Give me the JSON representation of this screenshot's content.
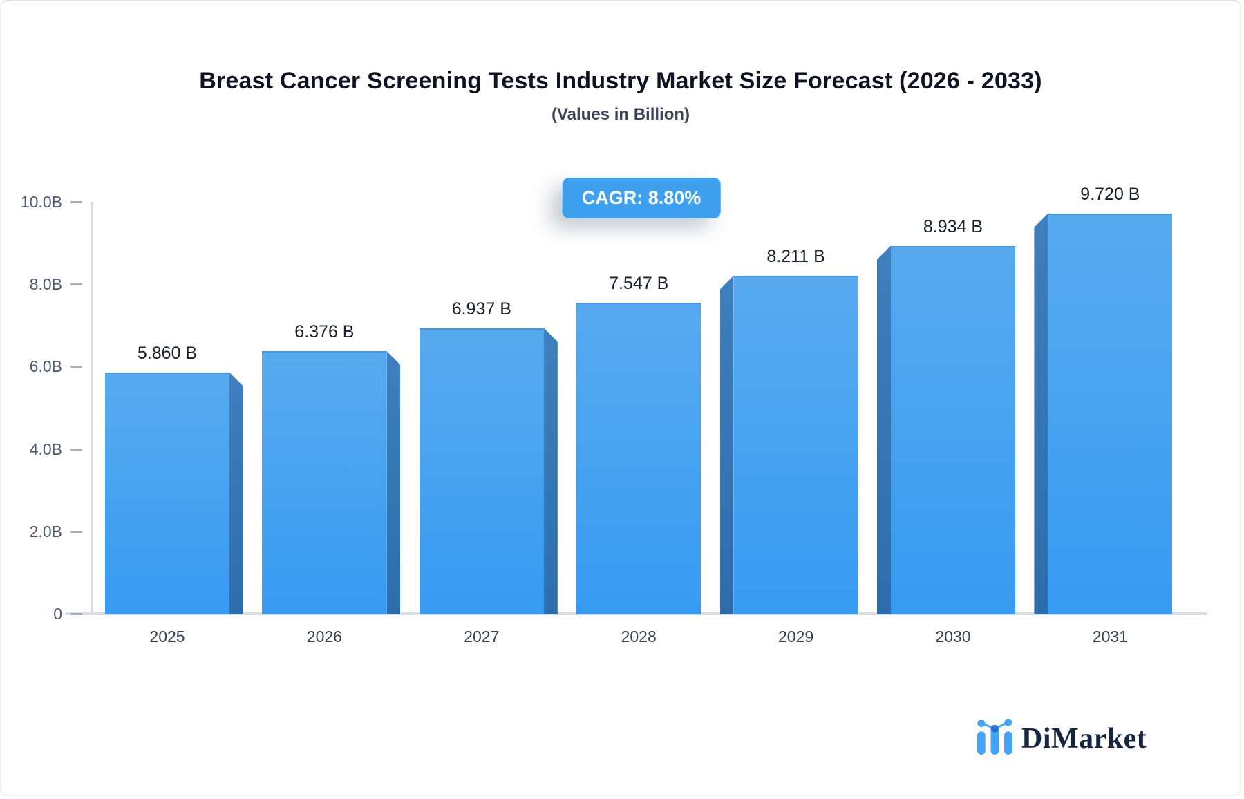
{
  "header": {
    "title": "Breast Cancer Screening Tests Industry Market Size Forecast (2026 - 2033)",
    "subtitle": "(Values in Billion)"
  },
  "badge": {
    "label": "CAGR: 8.80%"
  },
  "chart_data": {
    "type": "bar",
    "title": "Breast Cancer Screening Tests Industry Market Size Forecast (2026 - 2033)",
    "subtitle": "(Values in Billion)",
    "categories": [
      "2025",
      "2026",
      "2027",
      "2028",
      "2029",
      "2030",
      "2031"
    ],
    "values": [
      5.86,
      6.376,
      6.937,
      7.547,
      8.211,
      8.934,
      9.72
    ],
    "value_labels": [
      "5.860 B",
      "6.376 B",
      "6.937 B",
      "7.547 B",
      "8.211 B",
      "8.934 B",
      "9.720 B"
    ],
    "cagr_label": "CAGR: 8.80%",
    "xlabel": "",
    "ylabel": "",
    "ylim": [
      0,
      10
    ],
    "ytick_values": [
      10,
      8,
      6,
      4,
      2,
      0
    ],
    "ytick_labels": [
      "10.0B",
      "8.0B",
      "6.0B",
      "4.0B",
      "2.0B",
      "0"
    ],
    "grid": false,
    "legend": "none",
    "colors": {
      "bar_face_top": "#58aaef",
      "bar_face_bottom": "#379bf2",
      "bar_side": "#2f73b2",
      "badge_background": "#3fa0f0",
      "badge_text": "#ffffff",
      "axis_line": "#d9dce2",
      "title_text": "#0d1320",
      "tick_text": "#4d5870"
    }
  },
  "logo": {
    "text": "DiMarket",
    "icon": "mini-bar-chart-icon",
    "icon_color": "#42a3f7",
    "text_color": "#16263f"
  }
}
